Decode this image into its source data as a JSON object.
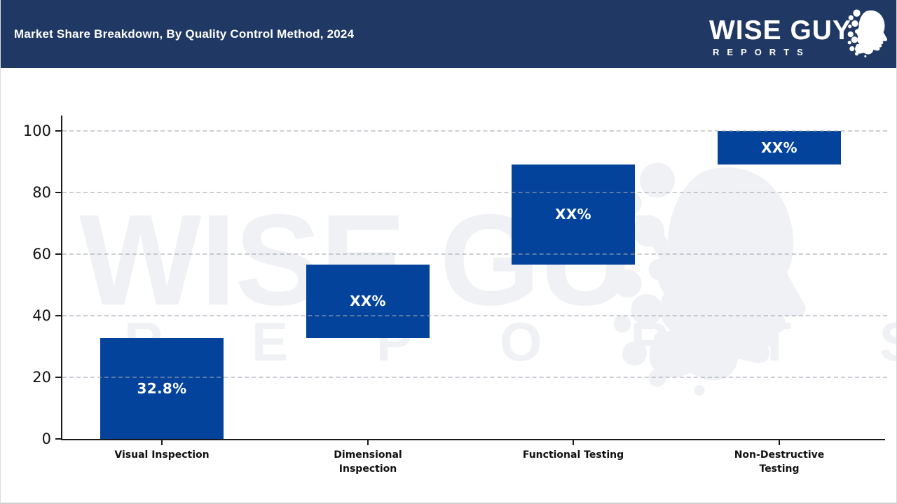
{
  "header": {
    "title": "Market Share Breakdown, By Quality Control Method, 2024",
    "logo": {
      "wordmark": "WISE GUY",
      "subtext": "REPORTS",
      "head_icon": "head-profile-dots-icon"
    }
  },
  "watermark": {
    "wordmark": "WISE GUY",
    "subtext": "R E P O R T S",
    "head_icon": "head-profile-dots-icon"
  },
  "chart_data": {
    "type": "bar",
    "variant": "floating-waterfall",
    "title": "Market Share Breakdown, By Quality Control Method, 2024",
    "categories": [
      "Visual Inspection",
      "Dimensional\nInspection",
      "Functional Testing",
      "Non-Destructive\nTesting"
    ],
    "segments": [
      {
        "category": "Visual Inspection",
        "start": 0,
        "end": 32.8,
        "label": "32.8%"
      },
      {
        "category": "Dimensional Inspection",
        "start": 32.8,
        "end": 56.6,
        "label": "XX%"
      },
      {
        "category": "Functional Testing",
        "start": 56.6,
        "end": 89.2,
        "label": "XX%"
      },
      {
        "category": "Non-Destructive Testing",
        "start": 89.2,
        "end": 100,
        "label": "XX%"
      }
    ],
    "xlabel": "",
    "ylabel": "",
    "ylim": [
      0,
      100
    ],
    "yticks": [
      0,
      20,
      40,
      60,
      80,
      100
    ],
    "grid": "horizontal-dashed",
    "legend": "none",
    "colors": {
      "bar": "#04439B",
      "bar_label": "#FFFFFF",
      "axis": "#1A1A1A",
      "grid": "#D5D5D5"
    }
  },
  "colors": {
    "header_bg": "#203864",
    "header_text": "#FFFFFF",
    "chart_bg": "#FFFFFF",
    "watermark": "#EFF1F4"
  }
}
